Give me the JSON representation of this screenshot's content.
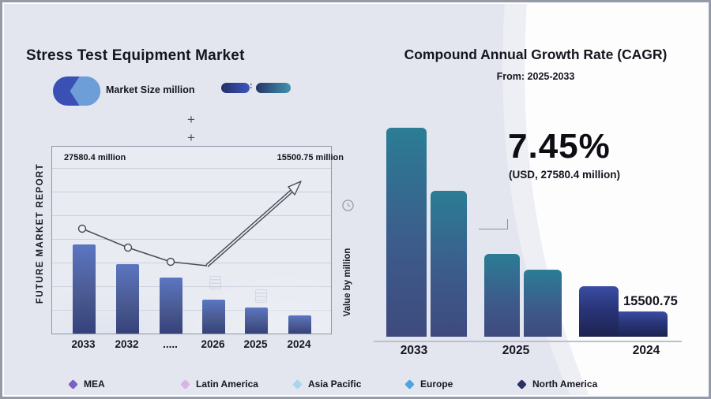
{
  "left": {
    "title": "Stress Test Equipment Market",
    "subtitle_label": "Market Size million",
    "pill_separator": ":",
    "plus_mark": "+",
    "annotation_left": "27580.4 million",
    "annotation_right": "15500.75 million",
    "side_label": "FUTURE MARKET REPORT",
    "value_axis_label": "Value by million"
  },
  "right": {
    "title": "Compound Annual Growth Rate (CAGR)",
    "subtitle": "From: 2025-2033",
    "cagr_value": "7.45%",
    "cagr_detail": "(USD, 27580.4 million)",
    "bar_value_label": "15500.75"
  },
  "legend": {
    "items": [
      {
        "label": "MEA",
        "color": "#7c5fc4"
      },
      {
        "label": "Latin America",
        "color": "#d9b3e6"
      },
      {
        "label": "Asia Pacific",
        "color": "#a9d6ee"
      },
      {
        "label": "Europe",
        "color": "#4fa3e0"
      },
      {
        "label": "North America",
        "color": "#2a3163"
      }
    ]
  },
  "chart_data": [
    {
      "type": "bar",
      "title": "Stress Test Equipment Market — Market Size million",
      "categories": [
        "2033",
        "2032",
        ".....",
        "2026",
        "2025",
        "2024"
      ],
      "values": [
        113,
        88,
        71,
        43,
        33,
        23
      ],
      "value_scale": "relative bar heights in px (chart shows no numeric axis)",
      "annotations": [
        "27580.4 million",
        "15500.75 million"
      ],
      "ylabel": "Value by million",
      "grid": true,
      "trend": "marker line declines from 2033 to 2026, then outlined arrow rises sharply to top right"
    },
    {
      "type": "bar",
      "title": "Compound Annual Growth Rate (CAGR) 7.45%",
      "categories": [
        "2033",
        "2025",
        "2024"
      ],
      "series": [
        {
          "name": "primary",
          "values": [
            265,
            105,
            64
          ]
        },
        {
          "name": "secondary",
          "values": [
            185,
            85,
            32
          ]
        }
      ],
      "value_scale": "relative bar heights in px (chart shows no numeric axis)",
      "data_label": "15500.75",
      "legend_position": "bottom"
    }
  ],
  "colors": {
    "background": "#e3e6ef",
    "left_bar_top": "#5b76c1",
    "left_bar_bottom": "#35417b",
    "right_bar_teal_top": "#2b7d95",
    "right_bar_teal_bottom": "#3f4a7e",
    "right_bar_navy_top": "#3a4da3",
    "right_bar_navy_bottom": "#1c2350",
    "accent_pill_dark": "#3a50b5",
    "accent_pill_light": "#6d9ed8"
  }
}
